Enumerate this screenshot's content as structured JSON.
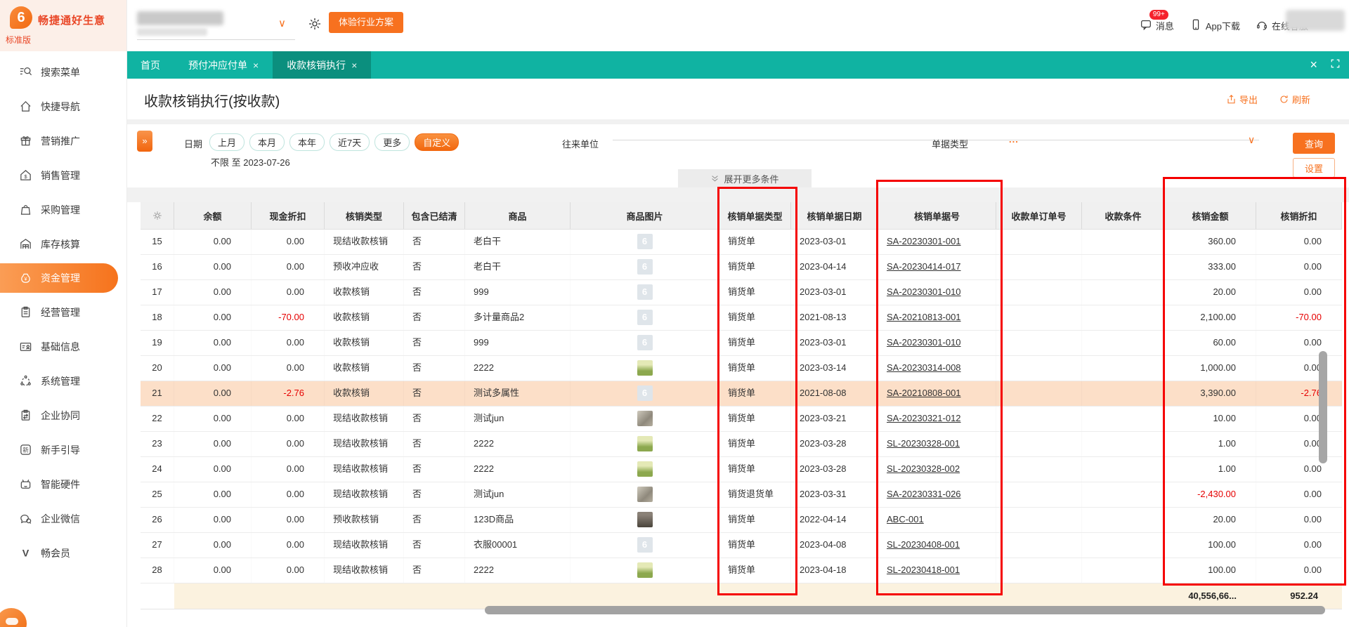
{
  "brand": {
    "name": "畅捷通好生意",
    "edition": "标准版",
    "logo_glyph": "6"
  },
  "topbar": {
    "trial_button": "体验行业方案",
    "messages_label": "消息",
    "messages_badge": "99+",
    "app_download_label": "App下载",
    "online_service_label": "在线客服"
  },
  "tabs": [
    {
      "label": "首页",
      "closable": false,
      "active": false
    },
    {
      "label": "预付冲应付单",
      "closable": true,
      "active": false
    },
    {
      "label": "收款核销执行",
      "closable": true,
      "active": true
    }
  ],
  "page": {
    "title": "收款核销执行(按收款)",
    "export_label": "导出",
    "refresh_label": "刷新"
  },
  "filters": {
    "date_label": "日期",
    "date_options": [
      "上月",
      "本月",
      "本年",
      "近7天",
      "更多"
    ],
    "date_custom": "自定义",
    "date_range": "不限 至 2023-07-26",
    "partner_label": "往来单位",
    "partner_value": "",
    "doc_type_label": "单据类型",
    "doc_type_value": "",
    "search_button": "查询",
    "settings_button": "设置",
    "expand_more": "展开更多条件",
    "ellipsis_icon": "...",
    "expander_icon": "»"
  },
  "sidebar": {
    "items": [
      {
        "label": "搜索菜单",
        "icon": "search-icon",
        "active": false
      },
      {
        "label": "快捷导航",
        "icon": "home-icon",
        "active": false
      },
      {
        "label": "营销推广",
        "icon": "gift-icon",
        "active": false
      },
      {
        "label": "销售管理",
        "icon": "sales-icon",
        "active": false
      },
      {
        "label": "采购管理",
        "icon": "purchase-bag-icon",
        "active": false
      },
      {
        "label": "库存核算",
        "icon": "warehouse-icon",
        "active": false
      },
      {
        "label": "资金管理",
        "icon": "funds-icon",
        "active": true
      },
      {
        "label": "经营管理",
        "icon": "report-icon",
        "active": false
      },
      {
        "label": "基础信息",
        "icon": "idcard-icon",
        "active": false
      },
      {
        "label": "系统管理",
        "icon": "system-icon",
        "active": false
      },
      {
        "label": "企业协同",
        "icon": "collaboration-icon",
        "active": false
      },
      {
        "label": "新手引导",
        "icon": "newbie-icon",
        "active": false
      },
      {
        "label": "智能硬件",
        "icon": "hardware-icon",
        "active": false
      },
      {
        "label": "企业微信",
        "icon": "wechat-icon",
        "active": false
      },
      {
        "label": "畅会员",
        "icon": "member-icon",
        "active": false
      }
    ]
  },
  "table": {
    "columns": [
      "",
      "余额",
      "现金折扣",
      "核销类型",
      "包含已结清",
      "商品",
      "商品图片",
      "核销单据类型",
      "核销单据日期",
      "核销单据号",
      "收款单订单号",
      "收款条件",
      "核销金额",
      "核销折扣"
    ],
    "rows": [
      {
        "no": "15",
        "balance": "0.00",
        "cash_discount": "0.00",
        "writeoff_type": "现结收款核销",
        "include_settled": "否",
        "product": "老白干",
        "image": "logo",
        "doc_type": "销货单",
        "doc_date": "2023-03-01",
        "doc_no": "SA-20230301-001",
        "order_no": "",
        "condition": "",
        "amount": "360.00",
        "discount": "0.00",
        "highlight": false
      },
      {
        "no": "16",
        "balance": "0.00",
        "cash_discount": "0.00",
        "writeoff_type": "预收冲应收",
        "include_settled": "否",
        "product": "老白干",
        "image": "logo",
        "doc_type": "销货单",
        "doc_date": "2023-04-14",
        "doc_no": "SA-20230414-017",
        "order_no": "",
        "condition": "",
        "amount": "333.00",
        "discount": "0.00",
        "highlight": false
      },
      {
        "no": "17",
        "balance": "0.00",
        "cash_discount": "0.00",
        "writeoff_type": "收款核销",
        "include_settled": "否",
        "product": "999",
        "image": "logo",
        "doc_type": "销货单",
        "doc_date": "2023-03-01",
        "doc_no": "SA-20230301-010",
        "order_no": "",
        "condition": "",
        "amount": "20.00",
        "discount": "0.00",
        "highlight": false
      },
      {
        "no": "18",
        "balance": "0.00",
        "cash_discount": "-70.00",
        "writeoff_type": "收款核销",
        "include_settled": "否",
        "product": "多计量商品2",
        "image": "logo",
        "doc_type": "销货单",
        "doc_date": "2021-08-13",
        "doc_no": "SA-20210813-001",
        "order_no": "",
        "condition": "",
        "amount": "2,100.00",
        "discount": "-70.00",
        "highlight": false
      },
      {
        "no": "19",
        "balance": "0.00",
        "cash_discount": "0.00",
        "writeoff_type": "收款核销",
        "include_settled": "否",
        "product": "999",
        "image": "logo",
        "doc_type": "销货单",
        "doc_date": "2023-03-01",
        "doc_no": "SA-20230301-010",
        "order_no": "",
        "condition": "",
        "amount": "60.00",
        "discount": "0.00",
        "highlight": false
      },
      {
        "no": "20",
        "balance": "0.00",
        "cash_discount": "0.00",
        "writeoff_type": "收款核销",
        "include_settled": "否",
        "product": "2222",
        "image": "green",
        "doc_type": "销货单",
        "doc_date": "2023-03-14",
        "doc_no": "SA-20230314-008",
        "order_no": "",
        "condition": "",
        "amount": "1,000.00",
        "discount": "0.00",
        "highlight": false
      },
      {
        "no": "21",
        "balance": "0.00",
        "cash_discount": "-2.76",
        "writeoff_type": "收款核销",
        "include_settled": "否",
        "product": "测试多属性",
        "image": "logo",
        "doc_type": "销货单",
        "doc_date": "2021-08-08",
        "doc_no": "SA-20210808-001",
        "order_no": "",
        "condition": "",
        "amount": "3,390.00",
        "discount": "-2.76",
        "highlight": true
      },
      {
        "no": "22",
        "balance": "0.00",
        "cash_discount": "0.00",
        "writeoff_type": "现结收款核销",
        "include_settled": "否",
        "product": "测试jun",
        "image": "photo",
        "doc_type": "销货单",
        "doc_date": "2023-03-21",
        "doc_no": "SA-20230321-012",
        "order_no": "",
        "condition": "",
        "amount": "10.00",
        "discount": "0.00",
        "highlight": false
      },
      {
        "no": "23",
        "balance": "0.00",
        "cash_discount": "0.00",
        "writeoff_type": "现结收款核销",
        "include_settled": "否",
        "product": "2222",
        "image": "green",
        "doc_type": "销货单",
        "doc_date": "2023-03-28",
        "doc_no": "SL-20230328-001",
        "order_no": "",
        "condition": "",
        "amount": "1.00",
        "discount": "0.00",
        "highlight": false
      },
      {
        "no": "24",
        "balance": "0.00",
        "cash_discount": "0.00",
        "writeoff_type": "现结收款核销",
        "include_settled": "否",
        "product": "2222",
        "image": "green",
        "doc_type": "销货单",
        "doc_date": "2023-03-28",
        "doc_no": "SL-20230328-002",
        "order_no": "",
        "condition": "",
        "amount": "1.00",
        "discount": "0.00",
        "highlight": false
      },
      {
        "no": "25",
        "balance": "0.00",
        "cash_discount": "0.00",
        "writeoff_type": "现结收款核销",
        "include_settled": "否",
        "product": "测试jun",
        "image": "photo",
        "doc_type": "销货退货单",
        "doc_date": "2023-03-31",
        "doc_no": "SA-20230331-026",
        "order_no": "",
        "condition": "",
        "amount": "-2,430.00",
        "discount": "0.00",
        "highlight": false
      },
      {
        "no": "26",
        "balance": "0.00",
        "cash_discount": "0.00",
        "writeoff_type": "预收款核销",
        "include_settled": "否",
        "product": "123D商品",
        "image": "dark",
        "doc_type": "销货单",
        "doc_date": "2022-04-14",
        "doc_no": "ABC-001",
        "order_no": "",
        "condition": "",
        "amount": "20.00",
        "discount": "0.00",
        "highlight": false
      },
      {
        "no": "27",
        "balance": "0.00",
        "cash_discount": "0.00",
        "writeoff_type": "现结收款核销",
        "include_settled": "否",
        "product": "衣服00001",
        "image": "logo",
        "doc_type": "销货单",
        "doc_date": "2023-04-08",
        "doc_no": "SL-20230408-001",
        "order_no": "",
        "condition": "",
        "amount": "100.00",
        "discount": "0.00",
        "highlight": false
      },
      {
        "no": "28",
        "balance": "0.00",
        "cash_discount": "0.00",
        "writeoff_type": "现结收款核销",
        "include_settled": "否",
        "product": "2222",
        "image": "green",
        "doc_type": "销货单",
        "doc_date": "2023-04-18",
        "doc_no": "SL-20230418-001",
        "order_no": "",
        "condition": "",
        "amount": "100.00",
        "discount": "0.00",
        "highlight": false
      }
    ],
    "totals": {
      "amount": "40,556,66...",
      "discount": "952.24"
    }
  },
  "colors": {
    "accent_orange": "#f7711f",
    "teal_bar": "#10b3a2",
    "teal_active_tab": "#0b8f7e",
    "brand_red": "#e94626",
    "negative_red": "#e60000",
    "highlight_row": "#fcdfc8",
    "totals_cream": "#fbf2df",
    "annotation_red": "#f50000"
  }
}
